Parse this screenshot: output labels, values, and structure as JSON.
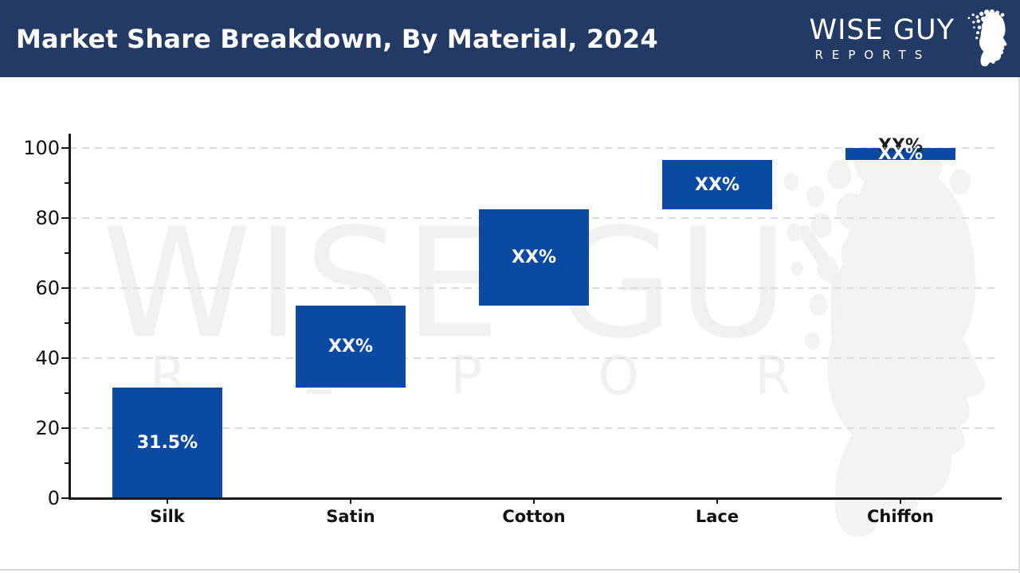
{
  "header": {
    "title": "Market Share Breakdown, By Material, 2024",
    "logo": {
      "line1": "WISE GUY",
      "line2": "REPORTS"
    }
  },
  "watermark": {
    "line1": "WISE GUY",
    "line2": "R E P O R T S"
  },
  "colors": {
    "header_bg": "#223A64",
    "bar": "#0B4AA3",
    "grid": "#DCDCDC",
    "axis": "#1A1A1A",
    "bar_label": "#FFFFFF",
    "watermark": "#F1F1F1"
  },
  "chart_data": {
    "type": "bar",
    "subtype": "waterfall",
    "title": "Market Share Breakdown, By Material, 2024",
    "categories": [
      "Silk",
      "Satin",
      "Cotton",
      "Lace",
      "Chiffon"
    ],
    "segments": [
      {
        "category": "Silk",
        "start": 0,
        "end": 31.5,
        "label": "31.5%"
      },
      {
        "category": "Satin",
        "start": 31.5,
        "end": 55,
        "label": "XX%"
      },
      {
        "category": "Cotton",
        "start": 55,
        "end": 82.5,
        "label": "XX%"
      },
      {
        "category": "Lace",
        "start": 82.5,
        "end": 96.5,
        "label": "XX%"
      },
      {
        "category": "Chiffon",
        "start": 96.5,
        "end": 100,
        "label": "XX%"
      }
    ],
    "ylim": [
      0,
      100
    ],
    "yticks": [
      0,
      20,
      40,
      60,
      80,
      100
    ],
    "minor_yticks": [
      10,
      30,
      50,
      70,
      90
    ],
    "xlabel": "",
    "ylabel": "",
    "grid": "horizontal dashed at major y ticks",
    "legend": null
  }
}
